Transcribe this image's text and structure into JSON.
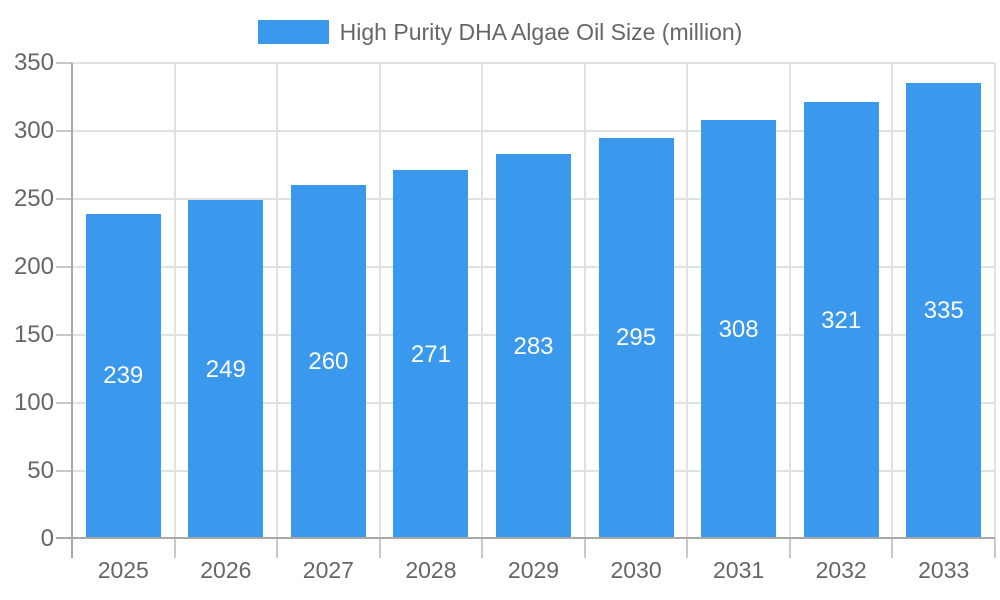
{
  "legend": {
    "label": "High Purity DHA Algae Oil Size (million)"
  },
  "colors": {
    "bar": "#3a99ec",
    "bar_label_text": "#ffffff",
    "axis_text": "#666666",
    "legend_text": "#666666",
    "gridline": "#e2e2e2",
    "tick": "#c9c9c9",
    "axis_line": "#a8a8a8",
    "background": "#ffffff"
  },
  "chart_data": {
    "type": "bar",
    "title": "High Purity DHA Algae Oil Size (million)",
    "categories": [
      "2025",
      "2026",
      "2027",
      "2028",
      "2029",
      "2030",
      "2031",
      "2032",
      "2033"
    ],
    "series": [
      {
        "name": "High Purity DHA Algae Oil Size (million)",
        "values": [
          239,
          249,
          260,
          271,
          283,
          295,
          308,
          321,
          335
        ]
      }
    ],
    "values": [
      239,
      249,
      260,
      271,
      283,
      295,
      308,
      321,
      335
    ],
    "bar_value_labels": [
      239,
      249,
      260,
      271,
      283,
      295,
      308,
      321,
      335
    ],
    "xlabel": "",
    "ylabel": "",
    "ylim": [
      0,
      350
    ],
    "yticks": [
      0,
      50,
      100,
      150,
      200,
      250,
      300,
      350
    ],
    "ytick_step": 50,
    "grid": true,
    "legend_position": "top-center"
  }
}
